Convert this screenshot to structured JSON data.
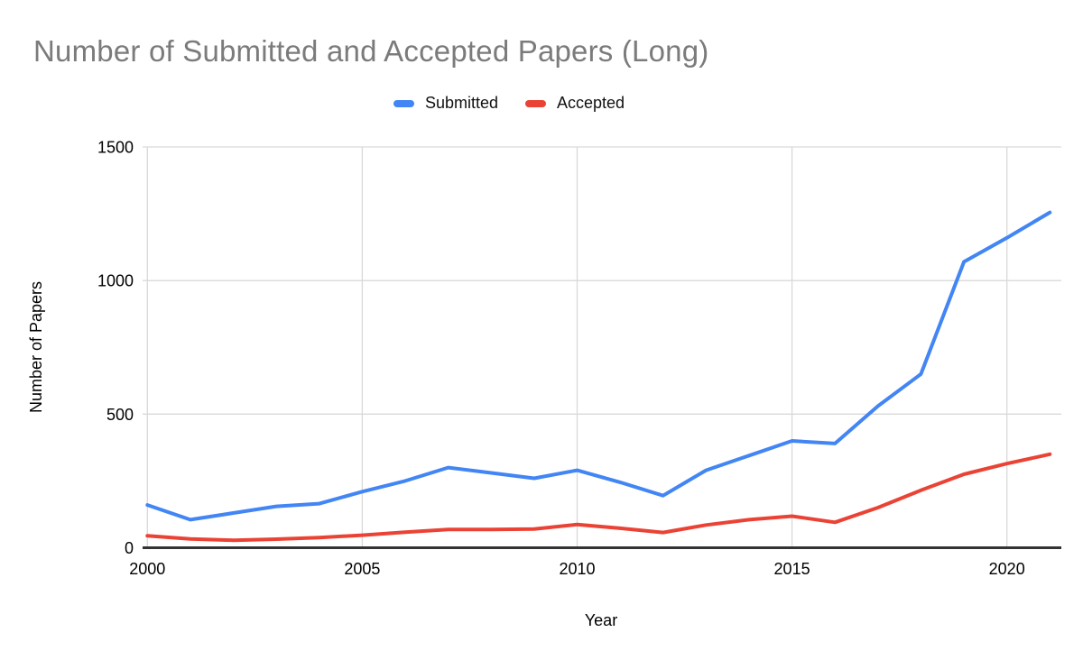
{
  "chart": {
    "title": "Number of Submitted and Accepted Papers (Long)",
    "x_axis_title": "Year",
    "y_axis_title": "Number of Papers"
  },
  "legend": {
    "items": [
      {
        "label": "Submitted",
        "color": "#4285F4"
      },
      {
        "label": "Accepted",
        "color": "#EA4335"
      }
    ]
  },
  "chart_data": {
    "type": "line",
    "title": "Number of Submitted and Accepted Papers (Long)",
    "xlabel": "Year",
    "ylabel": "Number of Papers",
    "x": [
      2000,
      2001,
      2002,
      2003,
      2004,
      2005,
      2006,
      2007,
      2008,
      2009,
      2010,
      2011,
      2012,
      2013,
      2014,
      2015,
      2016,
      2017,
      2018,
      2019,
      2020,
      2021
    ],
    "series": [
      {
        "name": "Submitted",
        "color": "#4285F4",
        "values": [
          160,
          105,
          130,
          155,
          165,
          210,
          250,
          300,
          280,
          260,
          290,
          245,
          195,
          290,
          345,
          400,
          390,
          530,
          650,
          1070,
          1160,
          1255
        ]
      },
      {
        "name": "Accepted",
        "color": "#EA4335",
        "values": [
          45,
          33,
          28,
          32,
          38,
          47,
          58,
          68,
          68,
          70,
          87,
          73,
          57,
          85,
          105,
          118,
          95,
          150,
          215,
          275,
          315,
          350
        ]
      }
    ],
    "ylim": [
      0,
      1500
    ],
    "y_ticks": [
      0,
      500,
      1000,
      1500
    ],
    "x_ticks": [
      2000,
      2005,
      2010,
      2015,
      2020
    ],
    "grid": true,
    "legend_position": "top",
    "gridline_color": "#d9d9d9",
    "axis_color": "#333333"
  }
}
